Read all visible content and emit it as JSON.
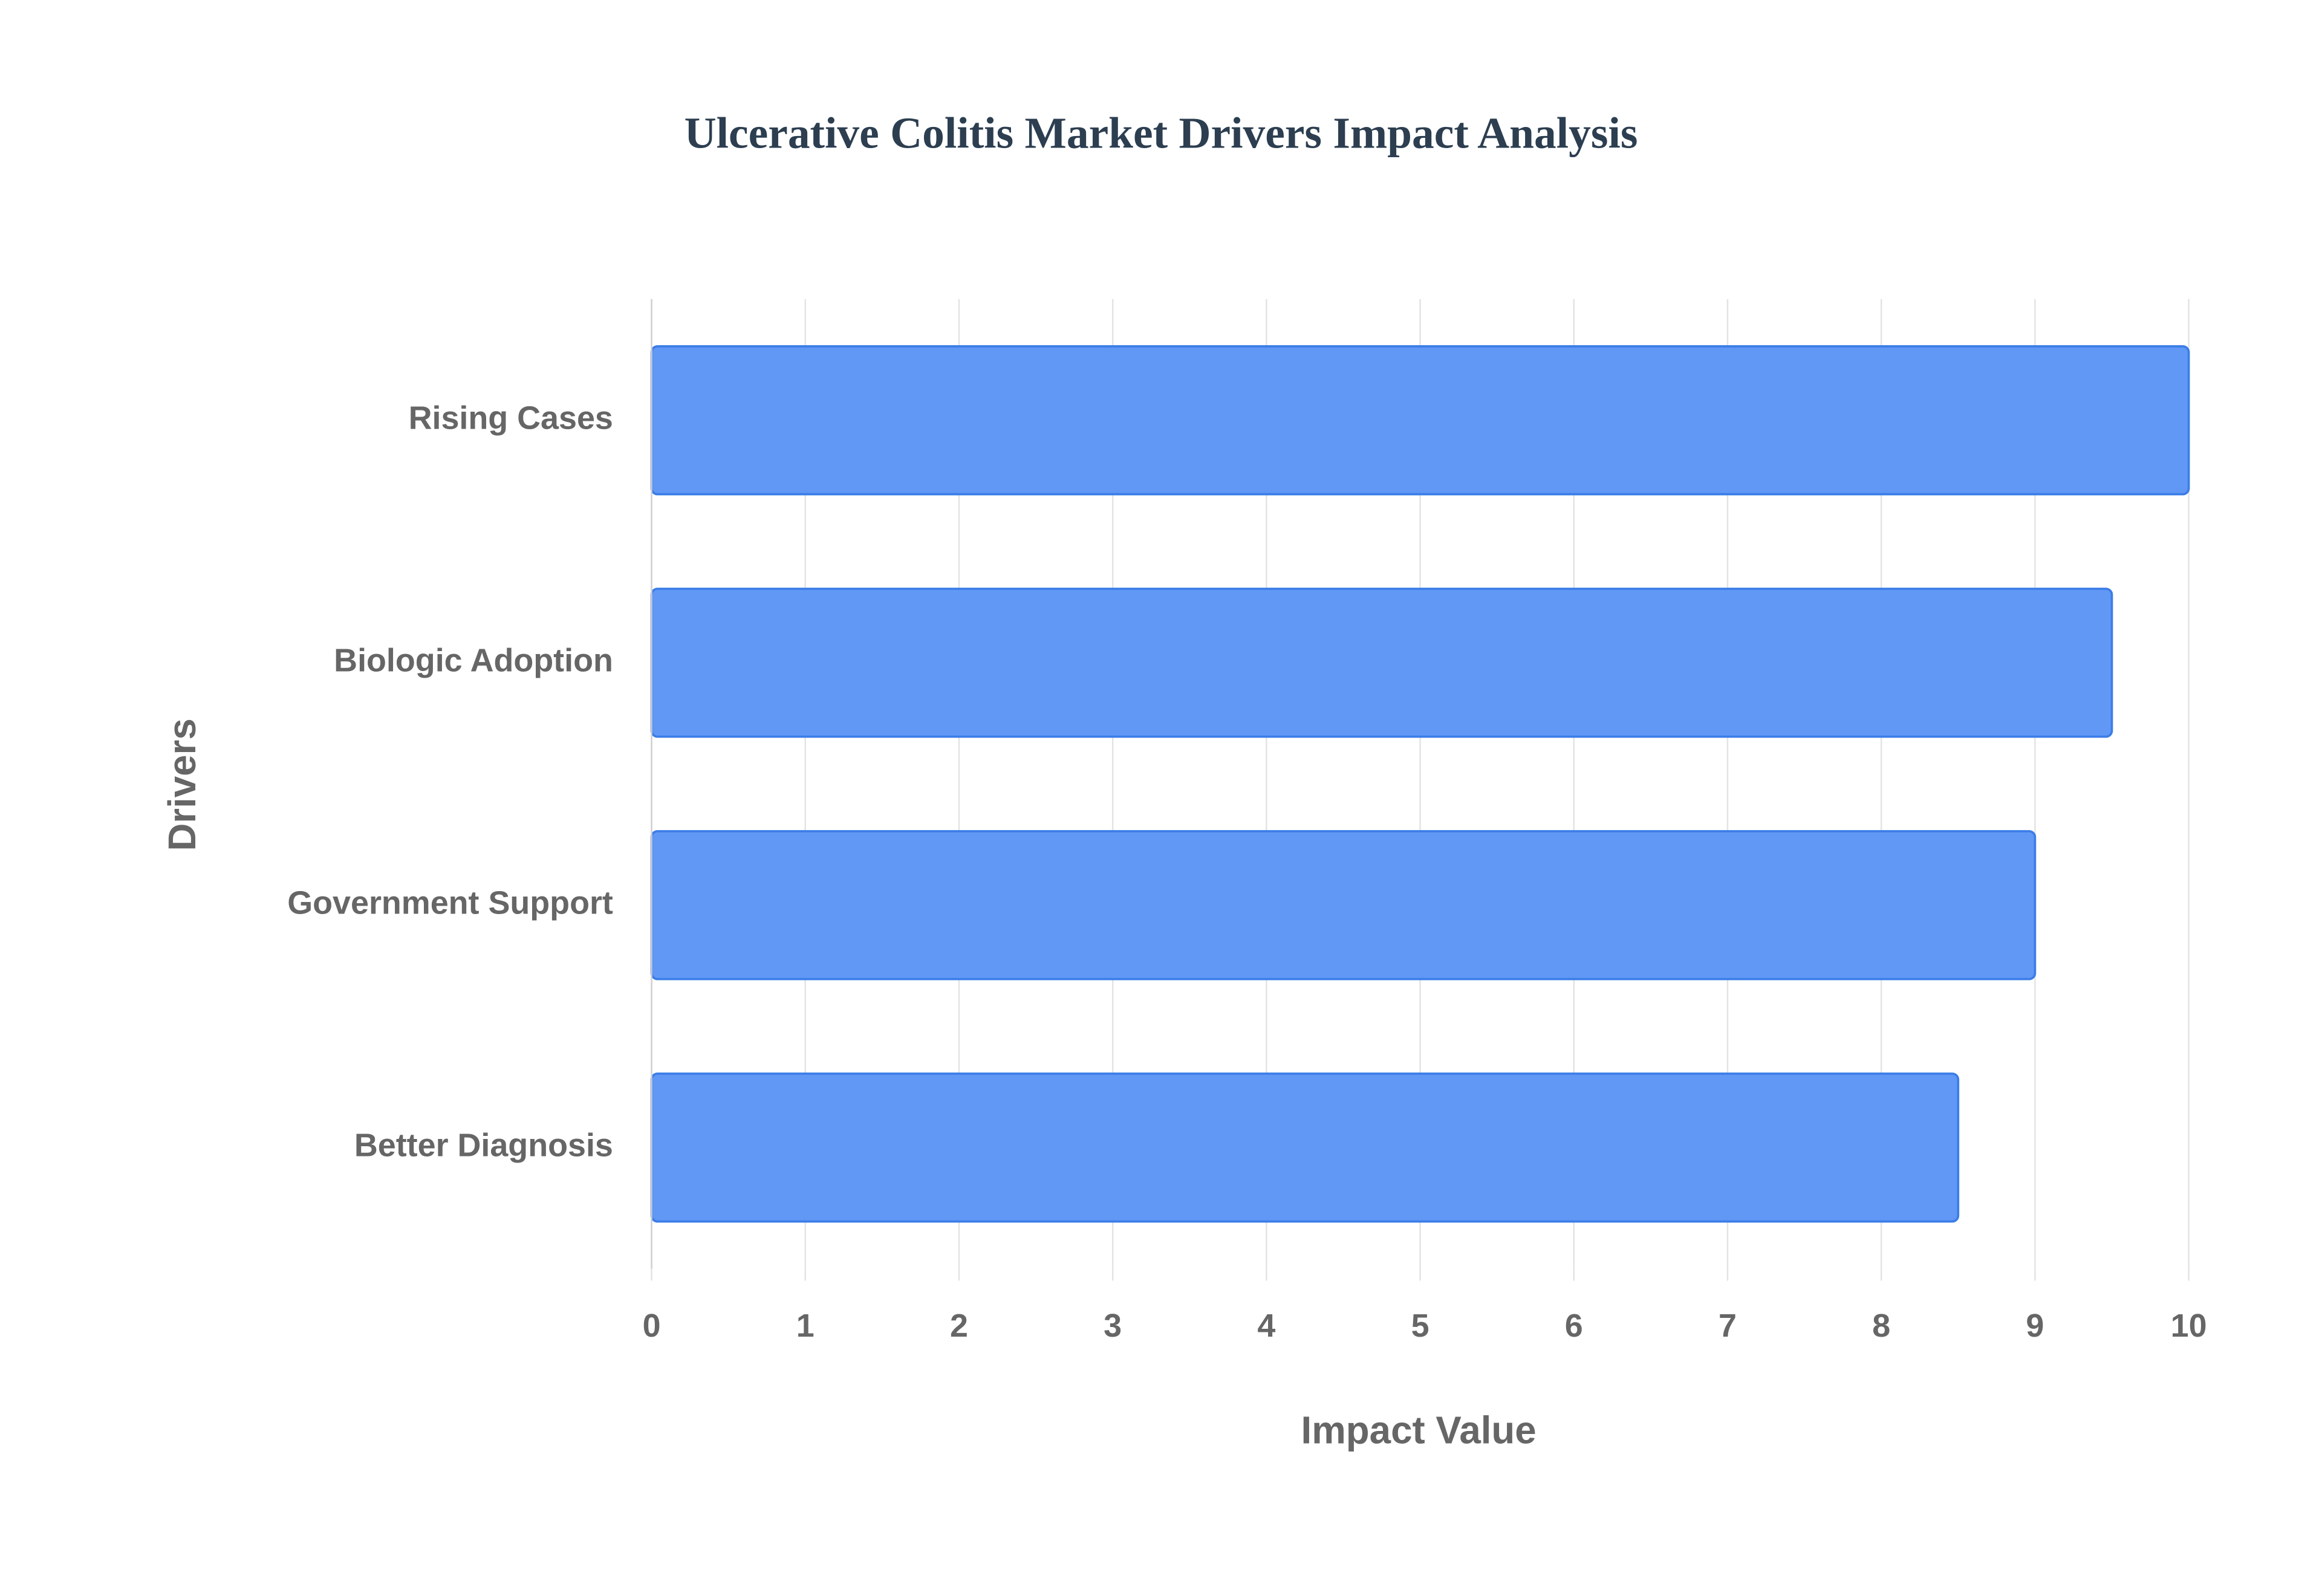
{
  "chart_data": {
    "type": "bar",
    "orientation": "horizontal",
    "title": "Ulcerative Colitis Market Drivers Impact Analysis",
    "x_label": "Impact Value",
    "y_label": "Drivers",
    "categories": [
      "Rising Cases",
      "Biologic Adoption",
      "Government Support",
      "Better Diagnosis"
    ],
    "values": [
      10,
      9.5,
      9,
      8.5
    ],
    "color": "#6198f5",
    "edge_color": "#3b7de8",
    "xlim": [
      0,
      10
    ],
    "xticks": [
      0,
      1,
      2,
      3,
      4,
      5,
      6,
      7,
      8,
      9,
      10
    ],
    "grid": true
  }
}
